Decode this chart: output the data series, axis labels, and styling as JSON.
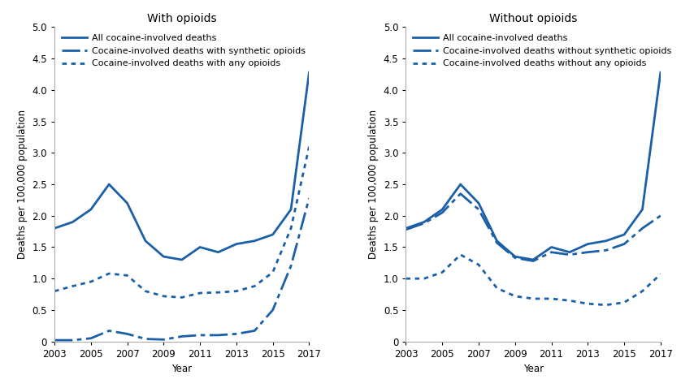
{
  "years": [
    2003,
    2004,
    2005,
    2006,
    2007,
    2008,
    2009,
    2010,
    2011,
    2012,
    2013,
    2014,
    2015,
    2016,
    2017
  ],
  "left": {
    "title": "With opioids",
    "ylabel": "Deaths per 100,000 population",
    "xlabel": "Year",
    "ylim": [
      0,
      5.0
    ],
    "yticks": [
      0.0,
      0.5,
      1.0,
      1.5,
      2.0,
      2.5,
      3.0,
      3.5,
      4.0,
      4.5,
      5.0
    ],
    "ytick_labels": [
      "0",
      "0.5",
      "1.0",
      "1.5",
      "2.0",
      "2.5",
      "3.0",
      "3.5",
      "4.0",
      "4.5",
      "5.0"
    ],
    "legend_labels": [
      "All cocaine-involved deaths",
      "Cocaine-involved deaths with synthetic opioids",
      "Cocaine-involved deaths with any opioids"
    ],
    "line1": [
      1.8,
      1.9,
      2.1,
      2.5,
      2.2,
      1.6,
      1.35,
      1.3,
      1.5,
      1.42,
      1.55,
      1.6,
      1.7,
      2.1,
      4.28
    ],
    "line2": [
      0.02,
      0.02,
      0.05,
      0.17,
      0.12,
      0.04,
      0.03,
      0.08,
      0.1,
      0.1,
      0.12,
      0.17,
      0.5,
      1.2,
      2.28
    ],
    "line3": [
      0.8,
      0.88,
      0.95,
      1.08,
      1.05,
      0.8,
      0.72,
      0.7,
      0.77,
      0.78,
      0.8,
      0.88,
      1.1,
      1.8,
      3.1
    ]
  },
  "right": {
    "title": "Without opioids",
    "ylabel": "Deaths per 100,000 population",
    "xlabel": "Year",
    "ylim": [
      0,
      5.0
    ],
    "yticks": [
      0.0,
      0.5,
      1.0,
      1.5,
      2.0,
      2.5,
      3.0,
      3.5,
      4.0,
      4.5,
      5.0
    ],
    "ytick_labels": [
      "0",
      "0.5",
      "1.0",
      "1.5",
      "2.0",
      "2.5",
      "3.0",
      "3.5",
      "4.0",
      "4.5",
      "5.0"
    ],
    "legend_labels": [
      "All cocaine-involved deaths",
      "Cocaine-involved deaths without synthetic opioids",
      "Cocaine-involved deaths without any opioids"
    ],
    "line1": [
      1.8,
      1.9,
      2.1,
      2.5,
      2.2,
      1.6,
      1.35,
      1.3,
      1.5,
      1.42,
      1.55,
      1.6,
      1.7,
      2.1,
      4.28
    ],
    "line2": [
      1.78,
      1.88,
      2.05,
      2.35,
      2.1,
      1.57,
      1.33,
      1.28,
      1.42,
      1.38,
      1.42,
      1.45,
      1.55,
      1.8,
      2.0
    ],
    "line3": [
      1.0,
      1.0,
      1.1,
      1.38,
      1.22,
      0.85,
      0.72,
      0.68,
      0.68,
      0.65,
      0.6,
      0.58,
      0.62,
      0.8,
      1.07
    ]
  },
  "line_color": "#1a5fa8",
  "background_color": "#ffffff",
  "title_fontsize": 10,
  "label_fontsize": 8.5,
  "tick_fontsize": 8.5,
  "legend_fontsize": 8.0,
  "linewidth_solid": 2.0,
  "linewidth_dash": 2.0,
  "xtick_years": [
    2003,
    2005,
    2007,
    2009,
    2011,
    2013,
    2015,
    2017
  ],
  "figsize": [
    8.38,
    4.78
  ],
  "dpi": 100
}
